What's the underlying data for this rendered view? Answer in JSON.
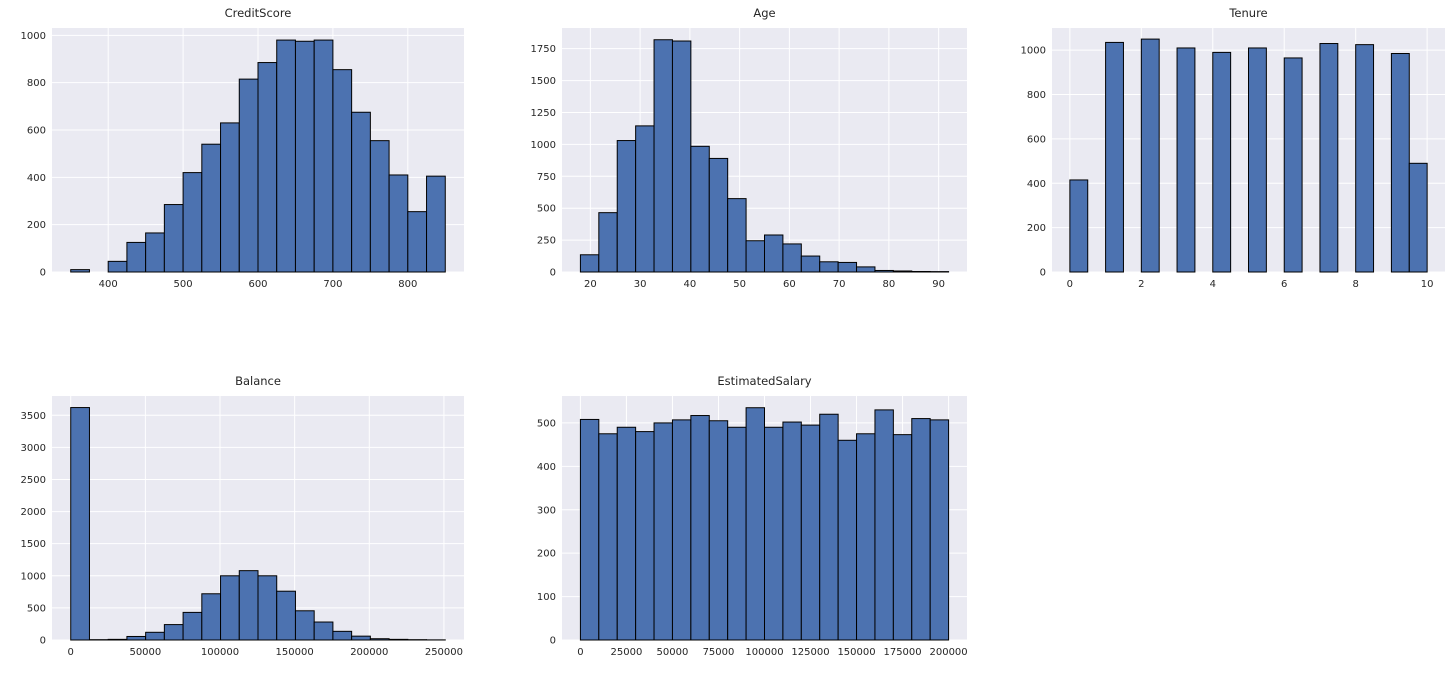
{
  "style": {
    "figure_bg": "#ffffff",
    "axes_bg": "#eaeaf2",
    "grid_color": "#ffffff",
    "bar_fill": "#4c72b0",
    "bar_edge": "#000000",
    "text_color": "#262626"
  },
  "chart_data": [
    {
      "type": "bar",
      "subtype": "histogram",
      "title": "CreditScore",
      "bin_start": 350,
      "bin_width": 25,
      "values": [
        10,
        0,
        45,
        125,
        165,
        285,
        420,
        540,
        630,
        815,
        885,
        980,
        975,
        980,
        855,
        675,
        555,
        410,
        255,
        405
      ],
      "xlim": [
        325,
        875
      ],
      "ylim": [
        0,
        1031
      ],
      "xticks": [
        400,
        500,
        600,
        700,
        800
      ],
      "yticks": [
        0,
        200,
        400,
        600,
        800,
        1000
      ],
      "grid": true,
      "legend": false
    },
    {
      "type": "bar",
      "subtype": "histogram",
      "title": "Age",
      "bin_start": 18,
      "bin_width": 3.7,
      "values": [
        135,
        465,
        1030,
        1145,
        1820,
        1810,
        985,
        890,
        575,
        245,
        290,
        220,
        125,
        80,
        75,
        40,
        12,
        8,
        4,
        3
      ],
      "xlim": [
        14.3,
        95.7
      ],
      "ylim": [
        0,
        1912
      ],
      "xticks": [
        20,
        30,
        40,
        50,
        60,
        70,
        80,
        90
      ],
      "yticks": [
        0,
        250,
        500,
        750,
        1000,
        1250,
        1500,
        1750
      ],
      "grid": true,
      "legend": false
    },
    {
      "type": "bar",
      "subtype": "histogram",
      "title": "Tenure",
      "bin_start": 0,
      "bin_width": 0.5,
      "values": [
        415,
        0,
        1035,
        0,
        1050,
        0,
        1010,
        0,
        990,
        0,
        1010,
        0,
        965,
        0,
        1030,
        0,
        1025,
        0,
        985,
        490
      ],
      "xlim": [
        -0.5,
        10.5
      ],
      "ylim": [
        0,
        1100
      ],
      "xticks": [
        0,
        2,
        4,
        6,
        8,
        10
      ],
      "yticks": [
        0,
        200,
        400,
        600,
        800,
        1000
      ],
      "grid": true,
      "legend": false
    },
    {
      "type": "bar",
      "subtype": "histogram",
      "title": "Balance",
      "bin_start": 0,
      "bin_width": 12545,
      "values": [
        3620,
        5,
        10,
        55,
        120,
        240,
        430,
        720,
        1000,
        1080,
        1000,
        760,
        455,
        280,
        135,
        60,
        20,
        10,
        5,
        2
      ],
      "xlim": [
        -12545,
        263445
      ],
      "ylim": [
        0,
        3800
      ],
      "xticks": [
        0,
        50000,
        100000,
        150000,
        200000,
        250000
      ],
      "yticks": [
        0,
        500,
        1000,
        1500,
        2000,
        2500,
        3000,
        3500
      ],
      "grid": true,
      "legend": false
    },
    {
      "type": "bar",
      "subtype": "histogram",
      "title": "EstimatedSalary",
      "bin_start": 0,
      "bin_width": 10000,
      "values": [
        508,
        475,
        490,
        480,
        500,
        507,
        517,
        505,
        490,
        535,
        490,
        502,
        495,
        520,
        460,
        475,
        530,
        473,
        510,
        507
      ],
      "xlim": [
        -10000,
        210000
      ],
      "ylim": [
        0,
        562
      ],
      "xticks": [
        0,
        25000,
        50000,
        75000,
        100000,
        125000,
        150000,
        175000,
        200000
      ],
      "yticks": [
        0,
        100,
        200,
        300,
        400,
        500
      ],
      "grid": true,
      "legend": false
    }
  ]
}
